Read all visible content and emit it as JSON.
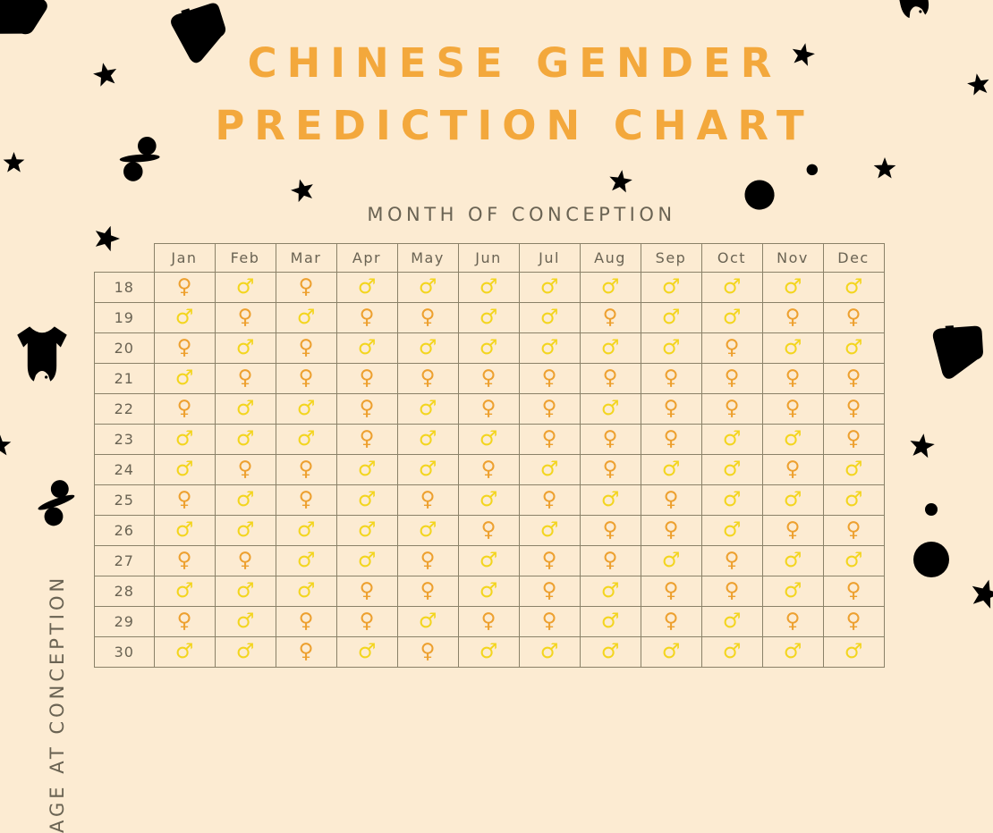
{
  "page": {
    "background": "#FCEBD2"
  },
  "title": {
    "line1": "CHINESE GENDER",
    "line2": "PREDICTION CHART",
    "color": "#F3A83C"
  },
  "subtitle": {
    "text": "MONTH OF CONCEPTION"
  },
  "side_label": {
    "text": "AGE AT CONCEPTION",
    "visible_portion": "EPTION"
  },
  "symbols": {
    "male": {
      "glyph": "♂",
      "color": "#F3D51E",
      "meaning": "boy"
    },
    "female": {
      "glyph": "♀",
      "color": "#EDA02F",
      "meaning": "girl"
    }
  },
  "icons": [
    "diaper-icon",
    "pacifier-icon",
    "rattle-icon",
    "onesie-icon",
    "star-icon"
  ],
  "colors": {
    "text": "#6A6353",
    "border": "#8A8168",
    "decoration": "#F0D02A",
    "star": "#F9D915"
  },
  "chart_data": {
    "type": "table",
    "title": "CHINESE GENDER PREDICTION CHART",
    "x_header": "MONTH OF CONCEPTION",
    "y_header": "AGE AT CONCEPTION",
    "columns": [
      "Jan",
      "Feb",
      "Mar",
      "Apr",
      "May",
      "Jun",
      "Jul",
      "Aug",
      "Sep",
      "Oct",
      "Nov",
      "Dec"
    ],
    "rows": [
      18,
      19,
      20,
      21,
      22,
      23,
      24,
      25,
      26,
      27,
      28,
      29,
      30
    ],
    "legend": {
      "M": "boy (male symbol, yellow)",
      "F": "girl (female symbol, orange)"
    },
    "grid": [
      [
        "F",
        "M",
        "F",
        "M",
        "M",
        "M",
        "M",
        "M",
        "M",
        "M",
        "M",
        "M"
      ],
      [
        "M",
        "F",
        "M",
        "F",
        "F",
        "M",
        "M",
        "F",
        "M",
        "M",
        "F",
        "F"
      ],
      [
        "F",
        "M",
        "F",
        "M",
        "M",
        "M",
        "M",
        "M",
        "M",
        "F",
        "M",
        "M"
      ],
      [
        "M",
        "F",
        "F",
        "F",
        "F",
        "F",
        "F",
        "F",
        "F",
        "F",
        "F",
        "F"
      ],
      [
        "F",
        "M",
        "M",
        "F",
        "M",
        "F",
        "F",
        "M",
        "F",
        "F",
        "F",
        "F"
      ],
      [
        "M",
        "M",
        "M",
        "F",
        "M",
        "M",
        "F",
        "F",
        "F",
        "M",
        "M",
        "F"
      ],
      [
        "M",
        "F",
        "F",
        "M",
        "M",
        "F",
        "M",
        "F",
        "M",
        "M",
        "F",
        "M"
      ],
      [
        "F",
        "M",
        "F",
        "M",
        "F",
        "M",
        "F",
        "M",
        "F",
        "M",
        "M",
        "M"
      ],
      [
        "M",
        "M",
        "M",
        "M",
        "M",
        "F",
        "M",
        "F",
        "F",
        "M",
        "F",
        "F"
      ],
      [
        "F",
        "F",
        "M",
        "M",
        "F",
        "M",
        "F",
        "F",
        "M",
        "F",
        "M",
        "M"
      ],
      [
        "M",
        "M",
        "M",
        "F",
        "F",
        "M",
        "F",
        "M",
        "F",
        "F",
        "M",
        "F"
      ],
      [
        "F",
        "M",
        "F",
        "F",
        "M",
        "F",
        "F",
        "M",
        "F",
        "M",
        "F",
        "F"
      ],
      [
        "M",
        "M",
        "F",
        "M",
        "F",
        "M",
        "M",
        "M",
        "M",
        "M",
        "M",
        "M"
      ]
    ]
  }
}
